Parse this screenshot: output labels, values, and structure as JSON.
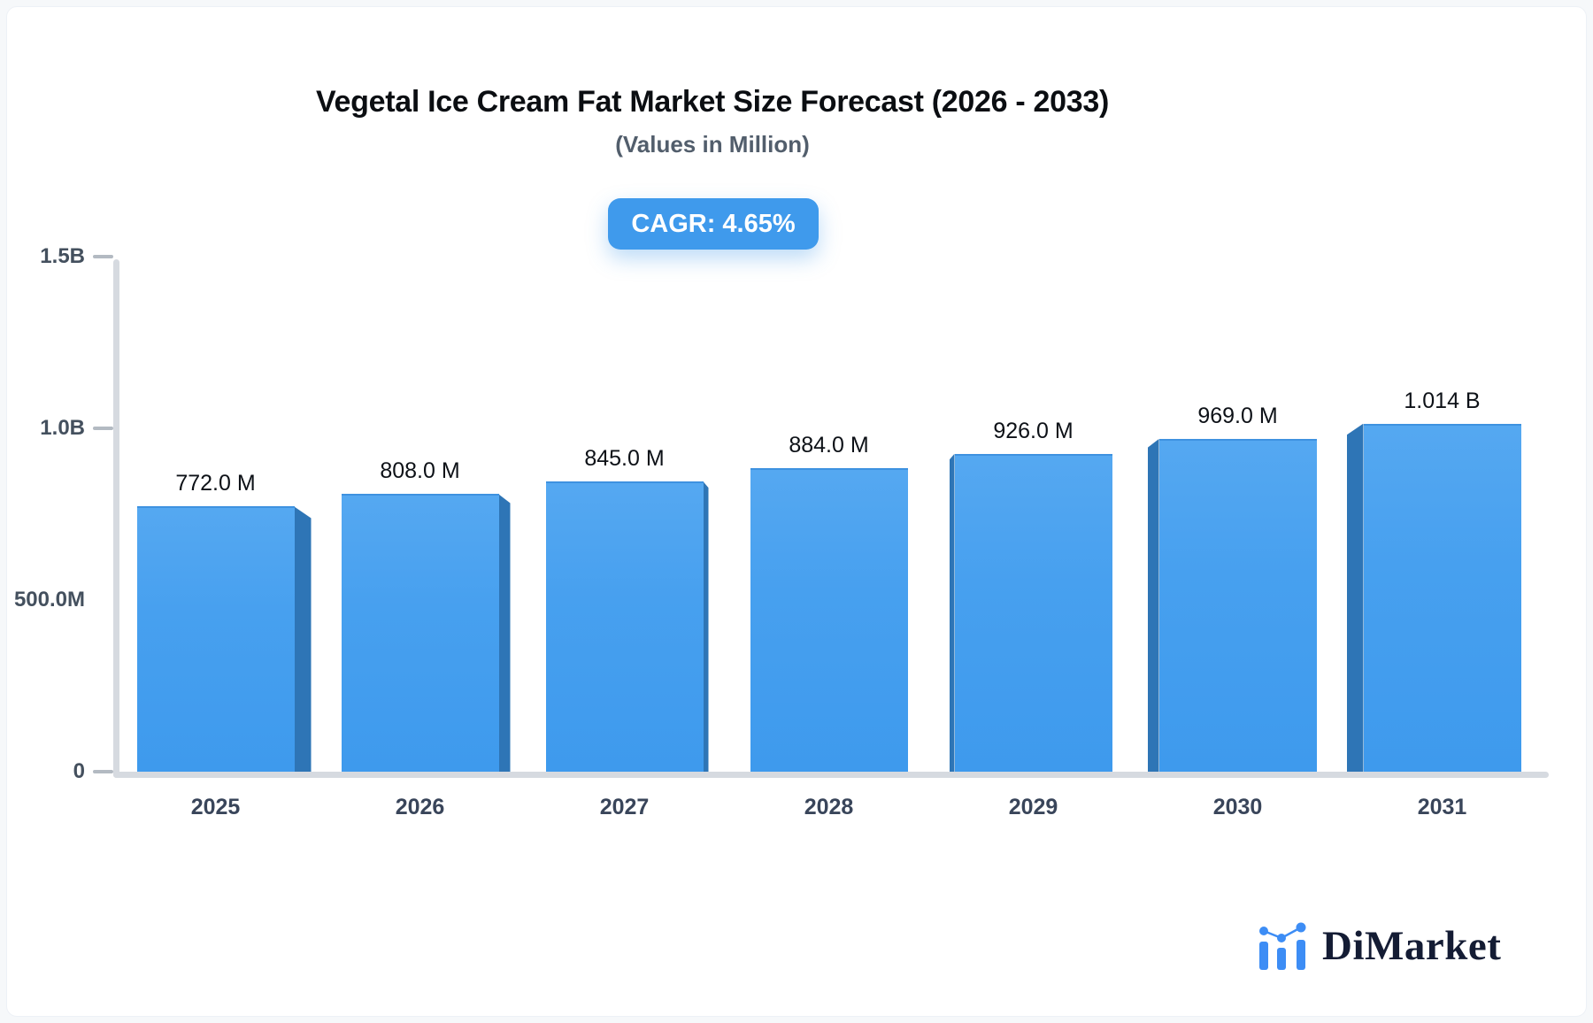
{
  "page": {
    "background": "#f6f8fa",
    "card_background": "#ffffff"
  },
  "header": {
    "title": "Vegetal Ice Cream Fat Market Size Forecast (2026 - 2033)",
    "subtitle": "(Values in Million)",
    "cagr_label": "CAGR: 4.65%",
    "cagr_badge_color": "#3f9aec"
  },
  "chart_data": {
    "type": "bar",
    "title": "Vegetal Ice Cream Fat Market Size Forecast (2026 - 2033)",
    "subtitle": "(Values in Million)",
    "unit": "Million",
    "categories": [
      "2025",
      "2026",
      "2027",
      "2028",
      "2029",
      "2030",
      "2031"
    ],
    "values": [
      772,
      808,
      845,
      884,
      926,
      969,
      1014
    ],
    "value_labels": [
      "772.0 M",
      "808.0 M",
      "845.0 M",
      "884.0 M",
      "926.0 M",
      "969.0 M",
      "1.014 B"
    ],
    "ylim": [
      0,
      1500
    ],
    "yticks": [
      {
        "label": "0",
        "value": 0,
        "dash": true
      },
      {
        "label": "500.0M",
        "value": 500,
        "dash": false
      },
      {
        "label": "1.0B",
        "value": 1000,
        "dash": true
      },
      {
        "label": "1.5B",
        "value": 1500,
        "dash": true
      }
    ],
    "grid": false,
    "legend": false,
    "bar_color": "#47a0ef",
    "bar_side_color": "#2e75b6",
    "axis_color": "#d6dae0",
    "effect": "3d-perspective-center"
  },
  "footer": {
    "brand": "DiMarket",
    "logo_icon": "bar-chart-logo-icon",
    "brand_color": "#141c34",
    "icon_color": "#3d8df5"
  }
}
